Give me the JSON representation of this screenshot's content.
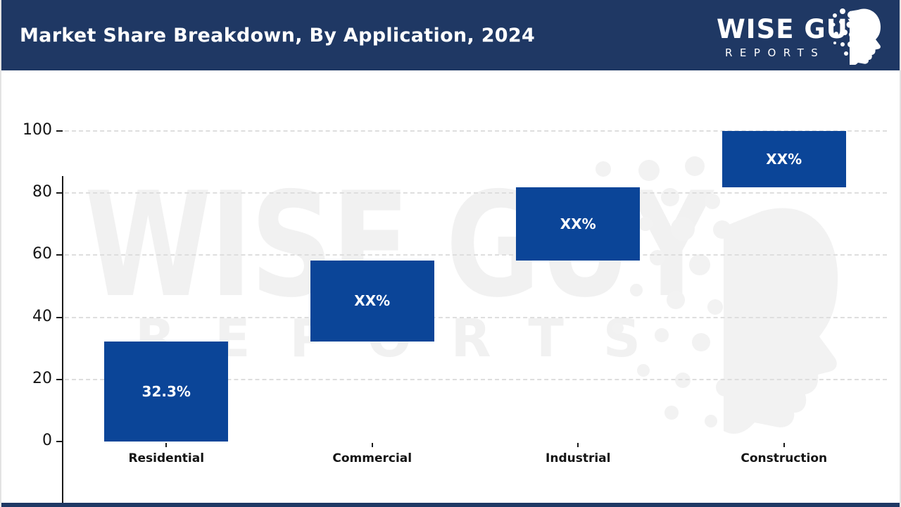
{
  "header": {
    "title": "Market Share Breakdown, By Application, 2024",
    "logo": {
      "line1": "WISE GUY",
      "line2": "REPORTS"
    }
  },
  "watermark": {
    "line1": "WISE GUY",
    "line2": "REPORTS"
  },
  "chart_data": {
    "type": "bar",
    "subtype": "waterfall-floating-bars",
    "title": "Market Share Breakdown, By Application, 2024",
    "categories": [
      "Residential",
      "Commercial",
      "Industrial",
      "Construction"
    ],
    "segments": [
      {
        "category": "Residential",
        "start": 0,
        "end": 32.3,
        "value": 32.3,
        "label": "32.3%"
      },
      {
        "category": "Commercial",
        "start": 32.3,
        "end": 58.3,
        "value": 26.0,
        "label": "XX%"
      },
      {
        "category": "Industrial",
        "start": 58.3,
        "end": 81.9,
        "value": 23.6,
        "label": "XX%"
      },
      {
        "category": "Construction",
        "start": 81.9,
        "end": 100,
        "value": 18.1,
        "label": "XX%"
      }
    ],
    "yticks": [
      "0",
      "20",
      "40",
      "60",
      "80",
      "100"
    ],
    "ylim": [
      0,
      108
    ],
    "xlabel": "",
    "ylabel": "",
    "grid": "horizontal-dashed",
    "legend": "none",
    "bar_color": "#0b4598",
    "bar_label_color": "#ffffff",
    "header_color": "#1f3864",
    "axis_color": "#1a1a1a",
    "gridline_color": "#dedede",
    "watermark_color": "#f1f1f1"
  }
}
